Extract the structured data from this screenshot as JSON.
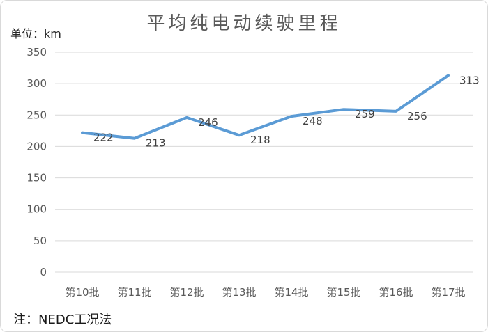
{
  "page": {
    "unit_label": "单位：km",
    "note": "注：NEDC工况法"
  },
  "chart_data": {
    "type": "line",
    "title": "平均纯电动续驶里程",
    "categories": [
      "第10批",
      "第11批",
      "第12批",
      "第13批",
      "第14批",
      "第15批",
      "第16批",
      "第17批"
    ],
    "series": [
      {
        "name": "平均纯电动续驶里程",
        "values": [
          222,
          213,
          246,
          218,
          248,
          259,
          256,
          313
        ]
      }
    ],
    "ylim": [
      0,
      350
    ],
    "yticks": [
      0,
      50,
      100,
      150,
      200,
      250,
      300,
      350
    ],
    "grid": true,
    "legend_position": "none",
    "data_labels_visible": true,
    "colors": {
      "line": "#5B9BD5",
      "gridline": "#D9D9D9",
      "axis_labels": "#595959",
      "data_labels": "#404040",
      "title": "#595959"
    }
  }
}
